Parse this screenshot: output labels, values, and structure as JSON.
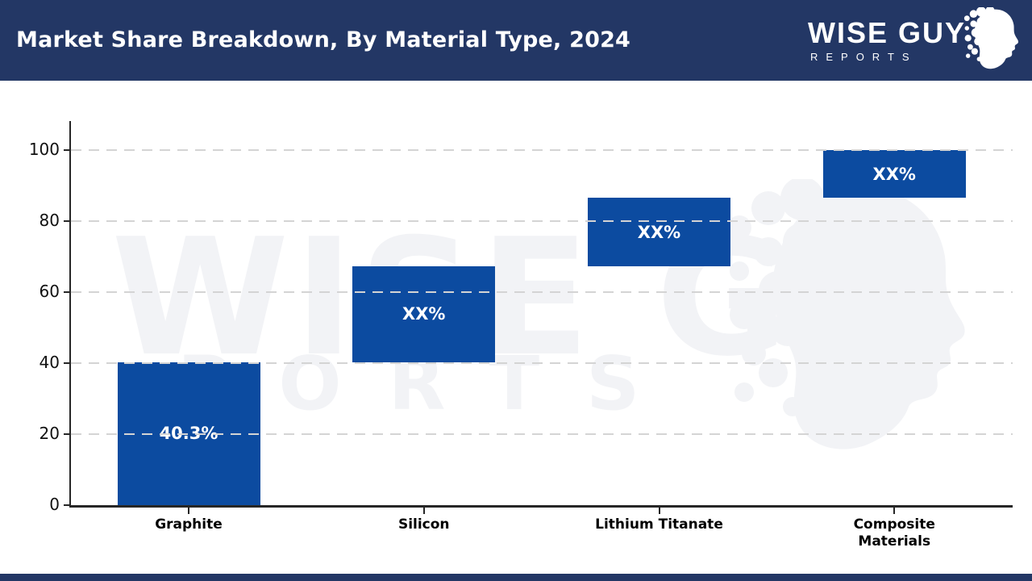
{
  "header": {
    "title": "Market Share Breakdown, By Material Type, 2024",
    "logo": {
      "line1": "WISE GUY",
      "line2": "REPORTS"
    }
  },
  "watermark": {
    "line1": "WISE GU",
    "line2": "PORTS"
  },
  "footer": {},
  "colors": {
    "header_bg": "#233765",
    "bar": "#0c4ba0",
    "bar_label": "#ffffff",
    "gridline": "#d4d4d4",
    "axis": "#262626",
    "watermark": "#f2f3f6"
  },
  "chart_data": {
    "type": "bar",
    "subtype": "waterfall",
    "title": "Market Share Breakdown, By Material Type, 2024",
    "xlabel": "",
    "ylabel": "",
    "categories": [
      "Graphite",
      "Silicon",
      "Lithium Titanate",
      "Composite Materials"
    ],
    "bars": [
      {
        "category": "Graphite",
        "start": 0,
        "end": 40.3,
        "label": "40.3%"
      },
      {
        "category": "Silicon",
        "start": 40.3,
        "end": 67.2,
        "label": "XX%"
      },
      {
        "category": "Lithium Titanate",
        "start": 67.2,
        "end": 86.5,
        "label": "XX%"
      },
      {
        "category": "Composite Materials",
        "start": 86.5,
        "end": 100,
        "label": "XX%"
      }
    ],
    "y_ticks": [
      0,
      20,
      40,
      60,
      80,
      100
    ],
    "ylim": [
      0,
      100
    ],
    "grid": "horizontal-dashed",
    "legend": "none"
  }
}
